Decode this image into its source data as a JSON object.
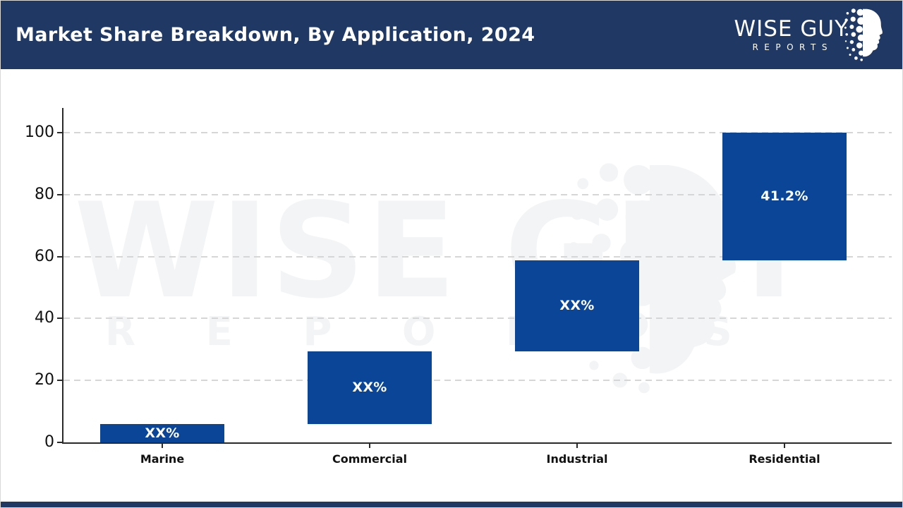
{
  "header": {
    "title": "Market Share Breakdown, By Application, 2024",
    "logo": {
      "line1": "WISE GUY",
      "line2": "REPORTS"
    }
  },
  "watermark": {
    "line1": "WISE GUY",
    "line2": "REPORTS"
  },
  "colors": {
    "header_bg": "#1f3864",
    "footer_bg": "#1f3864",
    "page_bg": "#ffffff",
    "bar": "#0b4598",
    "bar_label": "#ffffff",
    "axis": "#2a2a2a",
    "gridline": "#d6d6d6",
    "tick_text": "#111111",
    "watermark": "#f3f4f6",
    "logo_text": "#ffffff"
  },
  "chart_data": {
    "type": "bar",
    "variant": "floating-waterfall",
    "title": "Market Share Breakdown, By Application, 2024",
    "categories": [
      "Marine",
      "Commercial",
      "Industrial",
      "Residential"
    ],
    "segments": [
      {
        "category": "Marine",
        "start": 0,
        "end": 6,
        "value": 6,
        "label": "XX%"
      },
      {
        "category": "Commercial",
        "start": 6,
        "end": 29.4,
        "value": 23.4,
        "label": "XX%"
      },
      {
        "category": "Industrial",
        "start": 29.4,
        "end": 58.8,
        "value": 29.4,
        "label": "XX%"
      },
      {
        "category": "Residential",
        "start": 58.8,
        "end": 100,
        "value": 41.2,
        "label": "41.2%"
      }
    ],
    "xlabel": "",
    "ylabel": "",
    "ylim": [
      0,
      100
    ],
    "yticks": [
      0,
      20,
      40,
      60,
      80,
      100
    ],
    "grid": "horizontal-dashed",
    "legend": false
  }
}
